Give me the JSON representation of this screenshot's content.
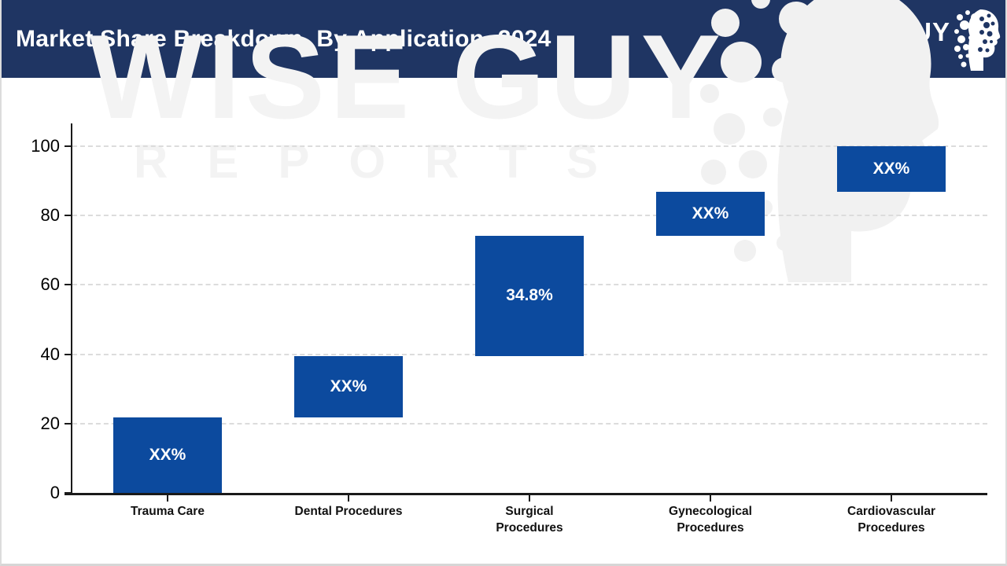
{
  "header": {
    "title": "Market Share Breakdown, By Application, 2024",
    "bg_color": "#1f3563",
    "logo": {
      "line1": "WISE GUY",
      "line2": "REPORTS"
    }
  },
  "watermark": {
    "line1": "WISE GUY",
    "line2": "REPORTS"
  },
  "chart_data": {
    "type": "bar",
    "subtype": "waterfall",
    "title": "Market Share Breakdown, By Application, 2024",
    "xlabel": "",
    "ylabel": "",
    "ylim": [
      0,
      107
    ],
    "y_ticks": [
      0,
      20,
      40,
      60,
      80,
      100
    ],
    "grid": "horizontal dashed",
    "legend": "none",
    "bar_color": "#0c4a9e",
    "categories": [
      "Trauma Care",
      "Dental Procedures",
      "Surgical Procedures",
      "Gynecological Procedures",
      "Cardiovascular Procedures"
    ],
    "categories_display": [
      "Trauma Care",
      "Dental Procedures",
      "Surgical\nProcedures",
      "Gynecological\nProcedures",
      "Cardiovascular\nProcedures"
    ],
    "segments": [
      {
        "category": "Trauma Care",
        "start": 0,
        "end": 21.8,
        "value_label": "XX%"
      },
      {
        "category": "Dental Procedures",
        "start": 21.8,
        "end": 39.4,
        "value_label": "XX%"
      },
      {
        "category": "Surgical Procedures",
        "start": 39.4,
        "end": 74.2,
        "value_label": "34.8%"
      },
      {
        "category": "Gynecological Procedures",
        "start": 74.2,
        "end": 86.9,
        "value_label": "XX%"
      },
      {
        "category": "Cardiovascular Procedures",
        "start": 86.9,
        "end": 100,
        "value_label": "XX%"
      }
    ]
  }
}
